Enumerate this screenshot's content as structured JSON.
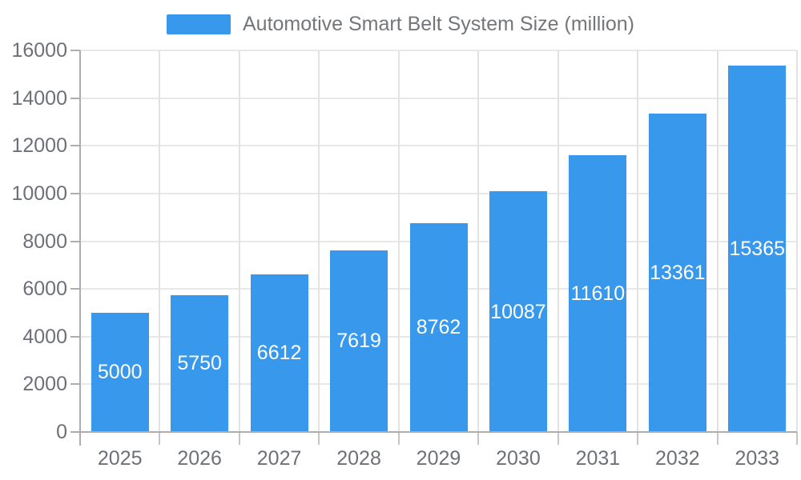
{
  "legend": {
    "label": "Automotive Smart Belt System Size (million)"
  },
  "colors": {
    "bar": "#3898EC",
    "bar_label": "#FFFFFF",
    "axis_text": "#6E7079",
    "legend_text": "#73767A",
    "gridline_horizontal": "#E8E8E8",
    "gridline_vertical": "#E2E2E2",
    "axis_line": "#ADADAD",
    "tick": "#C6C6C6",
    "background": "#FFFFFF"
  },
  "chart_data": {
    "type": "bar",
    "title": "",
    "series_name": "Automotive Smart Belt System Size (million)",
    "categories": [
      "2025",
      "2026",
      "2027",
      "2028",
      "2029",
      "2030",
      "2031",
      "2032",
      "2033"
    ],
    "values": [
      5000,
      5750,
      6612,
      7619,
      8762,
      10087,
      11610,
      13361,
      15365
    ],
    "value_labels": [
      "5000",
      "5750",
      "6612",
      "7619",
      "8762",
      "10087",
      "11610",
      "13361",
      "15365"
    ],
    "xlabel": "",
    "ylabel": "",
    "ylim": [
      0,
      16000
    ],
    "ytick_interval": 2000,
    "ytick_labels": [
      "0",
      "2000",
      "4000",
      "6000",
      "8000",
      "10000",
      "12000",
      "14000",
      "16000"
    ],
    "grid": true,
    "legend_position": "top-center",
    "bar_label_position": "inside-center"
  }
}
